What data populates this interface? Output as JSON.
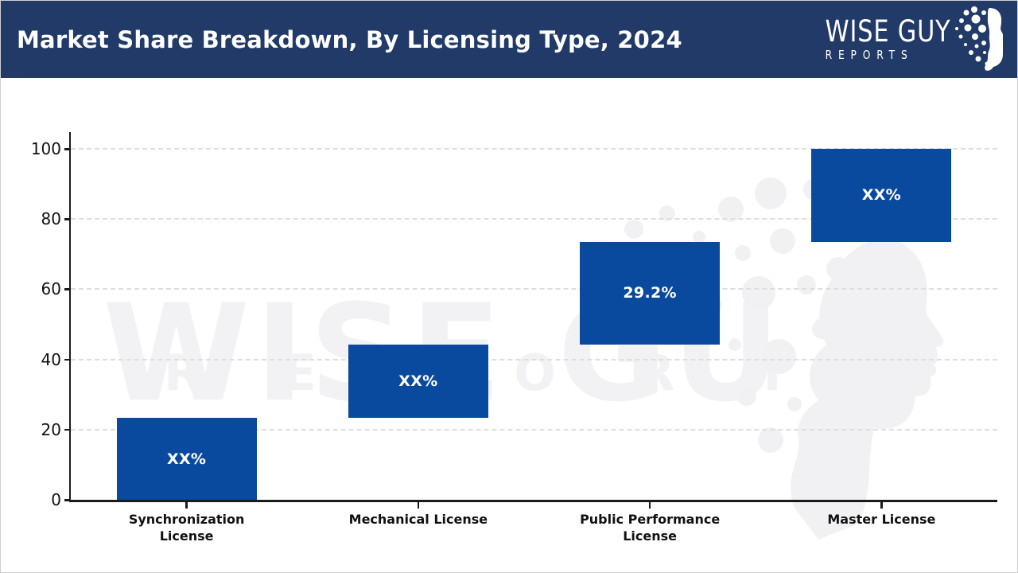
{
  "header": {
    "title": "Market Share Breakdown, By Licensing Type, 2024",
    "logo": {
      "line1": "WISE GUY",
      "line2": "REPORTS"
    }
  },
  "watermark": {
    "line1": "WISE GU",
    "line2": "R E P O R T S"
  },
  "chart_data": {
    "type": "bar",
    "subtype": "floating-waterfall",
    "title": "Market Share Breakdown, By Licensing Type, 2024",
    "categories": [
      "Synchronization License",
      "Mechanical License",
      "Public Performance License",
      "Master License"
    ],
    "category_label_lines": [
      [
        "Synchronization",
        "License"
      ],
      [
        "Mechanical License"
      ],
      [
        "Public Performance",
        "License"
      ],
      [
        "Master License"
      ]
    ],
    "bars": [
      {
        "category": "Synchronization License",
        "start": 0,
        "end": 23.3,
        "label": "XX%"
      },
      {
        "category": "Mechanical License",
        "start": 23.3,
        "end": 44.3,
        "label": "XX%"
      },
      {
        "category": "Public Performance License",
        "start": 44.3,
        "end": 73.5,
        "label": "29.2%"
      },
      {
        "category": "Master License",
        "start": 73.5,
        "end": 100,
        "label": "XX%"
      }
    ],
    "xlabel": "",
    "ylabel": "",
    "yticks": [
      0,
      20,
      40,
      60,
      80,
      100
    ],
    "ylim": [
      0,
      104.8
    ],
    "grid": "horizontal-dashed",
    "legend": "none"
  },
  "colors": {
    "header_bg": "#213a67",
    "bar": "#0a4a9e",
    "bar_label": "#ffffff",
    "axis": "#1a1a1a",
    "grid": "#dedede",
    "watermark": "#f2f2f4",
    "title_text": "#ffffff"
  }
}
